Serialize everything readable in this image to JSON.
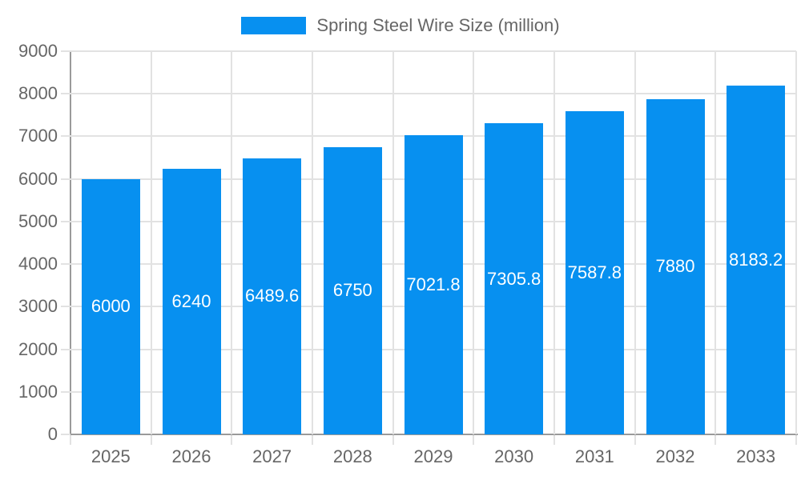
{
  "chart_data": {
    "type": "bar",
    "title": "Spring Steel Wire Size (million)",
    "categories": [
      "2025",
      "2026",
      "2027",
      "2028",
      "2029",
      "2030",
      "2031",
      "2032",
      "2033"
    ],
    "series": [
      {
        "name": "Spring Steel Wire Size (million)",
        "values": [
          6000,
          6240,
          6489.6,
          6750,
          7021.8,
          7305.8,
          7587.8,
          7880,
          8183.2
        ]
      }
    ],
    "data_labels": [
      "6000",
      "6240",
      "6489.6",
      "6750",
      "7021.8",
      "7305.8",
      "7587.8",
      "7880",
      "8183.2"
    ],
    "xlabel": "",
    "ylabel": "",
    "ylim": [
      0,
      9000
    ],
    "ytick_step": 1000,
    "ytick_labels": [
      "0",
      "1000",
      "2000",
      "3000",
      "4000",
      "5000",
      "6000",
      "7000",
      "8000",
      "9000"
    ],
    "grid": true,
    "legend_position": "top-center",
    "colors": {
      "bar": "#0790f0",
      "grid": "#e2e2e2",
      "axis": "#9a9a9a",
      "tick_text": "#666666",
      "value_label_text": "#ffffff",
      "background": "#ffffff"
    }
  }
}
